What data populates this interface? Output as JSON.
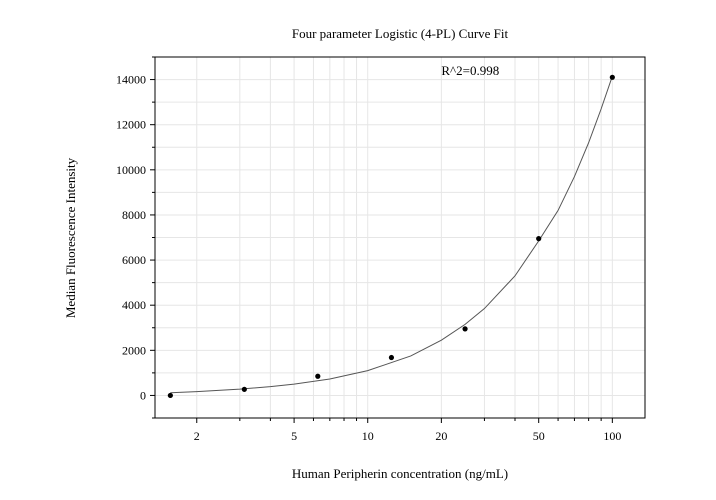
{
  "chart_data": {
    "type": "scatter",
    "title": "Four parameter Logistic (4-PL) Curve Fit",
    "xlabel": "Human Peripherin concentration (ng/mL)",
    "ylabel": "Median Fluorescence Intensity",
    "x_scale": "log",
    "xlim": [
      1.35,
      136
    ],
    "ylim": [
      -1000,
      15000
    ],
    "x_ticks": [
      2,
      5,
      10,
      20,
      50,
      100
    ],
    "x_tick_labels": [
      "2",
      "5",
      "10",
      "20",
      "50",
      "100"
    ],
    "y_ticks": [
      0,
      2000,
      4000,
      6000,
      8000,
      10000,
      12000,
      14000
    ],
    "y_tick_labels": [
      "0",
      "2000",
      "4000",
      "6000",
      "8000",
      "10000",
      "12000",
      "14000"
    ],
    "grid": true,
    "points": [
      {
        "x": 1.56,
        "y": 0
      },
      {
        "x": 3.13,
        "y": 270
      },
      {
        "x": 6.25,
        "y": 850
      },
      {
        "x": 12.5,
        "y": 1680
      },
      {
        "x": 25,
        "y": 2950
      },
      {
        "x": 50,
        "y": 6950
      },
      {
        "x": 100,
        "y": 14100
      }
    ],
    "fit_curve": [
      {
        "x": 1.56,
        "y": 120
      },
      {
        "x": 2,
        "y": 170
      },
      {
        "x": 3,
        "y": 280
      },
      {
        "x": 4,
        "y": 390
      },
      {
        "x": 5,
        "y": 500
      },
      {
        "x": 7,
        "y": 730
      },
      {
        "x": 10,
        "y": 1100
      },
      {
        "x": 15,
        "y": 1750
      },
      {
        "x": 20,
        "y": 2450
      },
      {
        "x": 25,
        "y": 3150
      },
      {
        "x": 30,
        "y": 3850
      },
      {
        "x": 40,
        "y": 5300
      },
      {
        "x": 50,
        "y": 6850
      },
      {
        "x": 60,
        "y": 8200
      },
      {
        "x": 70,
        "y": 9700
      },
      {
        "x": 80,
        "y": 11200
      },
      {
        "x": 90,
        "y": 12700
      },
      {
        "x": 100,
        "y": 14150
      }
    ],
    "annotation": "R^2=0.998",
    "annotation_pos": {
      "x": 20,
      "y": 14200
    },
    "colors": {
      "points": "#000000",
      "curve": "#555555",
      "grid": "#e6e6e6",
      "axis": "#000000"
    }
  }
}
